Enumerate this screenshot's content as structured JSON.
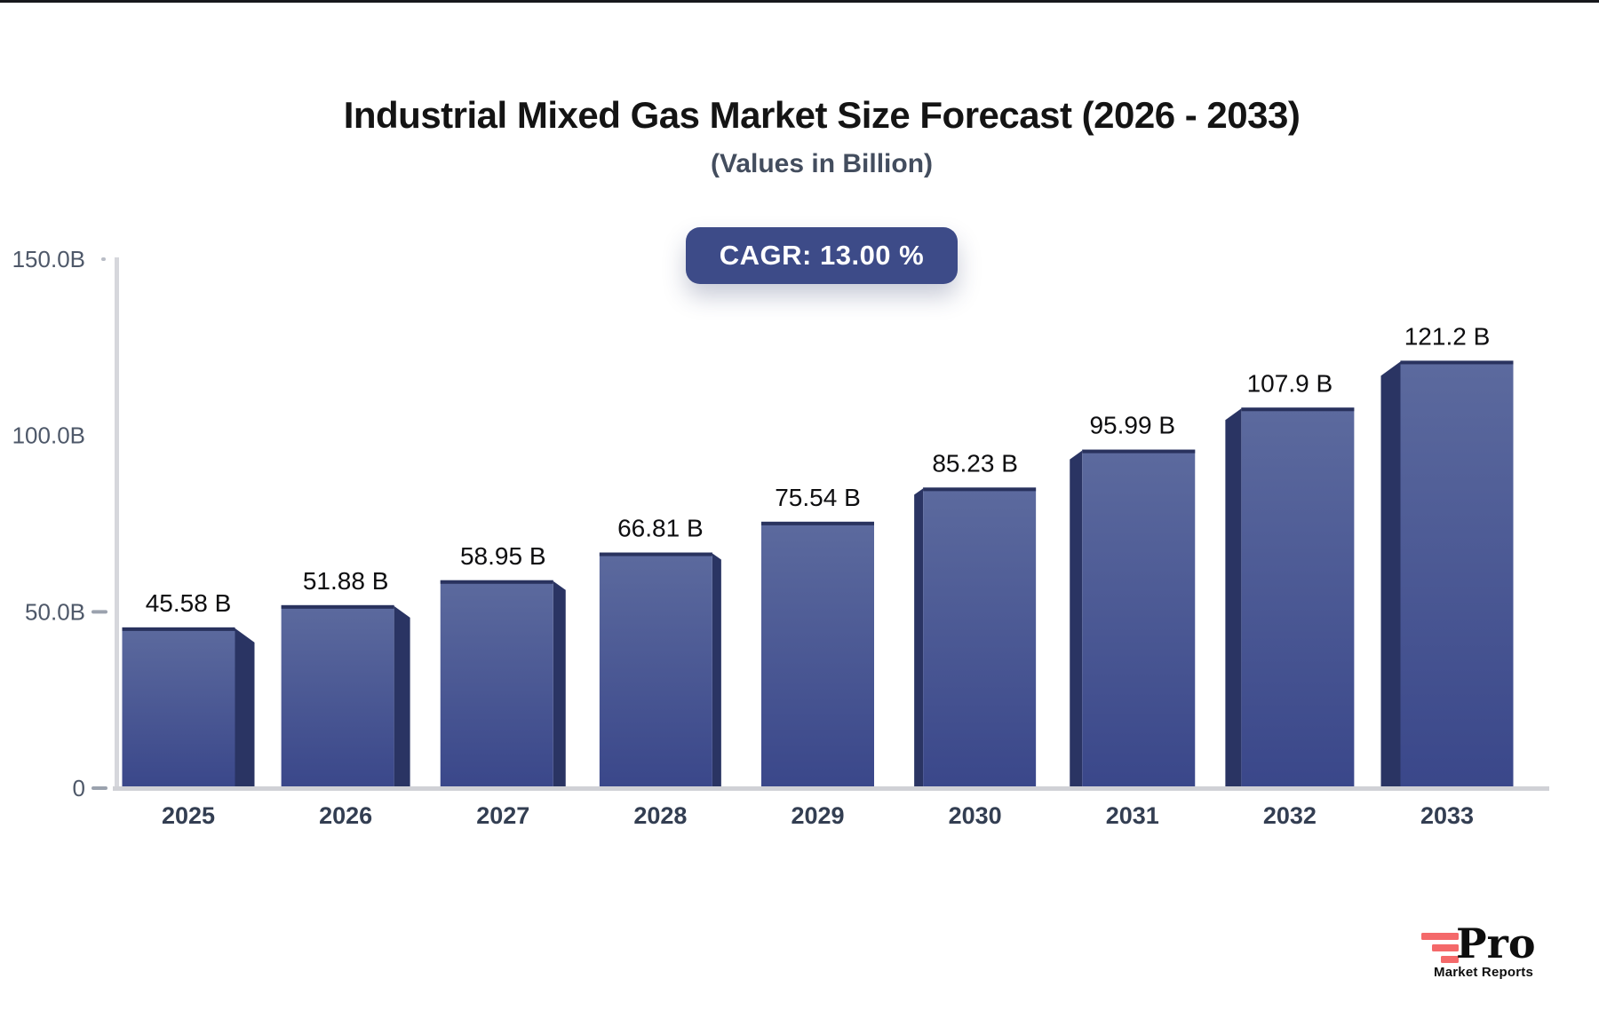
{
  "header": {
    "title": "Industrial Mixed Gas Market Size Forecast (2026 - 2033)",
    "subtitle": "(Values in Billion)"
  },
  "badge": {
    "label": "CAGR: 13.00 %",
    "bg": "#3d4b88",
    "text_color": "#ffffff"
  },
  "chart_data": {
    "type": "bar",
    "title": "Industrial Mixed Gas Market Size Forecast (2026 - 2033)",
    "subtitle": "(Values in Billion)",
    "categories": [
      "2025",
      "2026",
      "2027",
      "2028",
      "2029",
      "2030",
      "2031",
      "2032",
      "2033"
    ],
    "values": [
      45.58,
      51.88,
      58.95,
      66.81,
      75.54,
      85.23,
      95.99,
      107.9,
      121.2
    ],
    "bar_labels": [
      "45.58 B",
      "51.88 B",
      "58.95 B",
      "66.81 B",
      "75.54 B",
      "85.23 B",
      "95.99 B",
      "107.9 B",
      "121.2 B"
    ],
    "xlabel": "",
    "ylabel": "",
    "ylim": [
      0,
      150
    ],
    "grid": false,
    "legend": "none",
    "yticks": [
      {
        "value": 0,
        "label": "0",
        "mark": "dash"
      },
      {
        "value": 50,
        "label": "50.0B",
        "mark": "dash"
      },
      {
        "value": 100,
        "label": "100.0B",
        "mark": "none"
      },
      {
        "value": 150,
        "label": "150.0B",
        "mark": "dot"
      }
    ],
    "colors": {
      "bar_top": "#5c6a9e",
      "bar_bottom": "#3a478a",
      "bar_side": "#2a3463",
      "bar_edge": "#232c56",
      "axis_line": "#d6d7dc",
      "baseline": "#d0d1d6",
      "tick_mark": "#9ba2ae"
    }
  },
  "logo": {
    "name": "Pro",
    "subtext": "Market Reports",
    "accent": "#f4696a"
  }
}
